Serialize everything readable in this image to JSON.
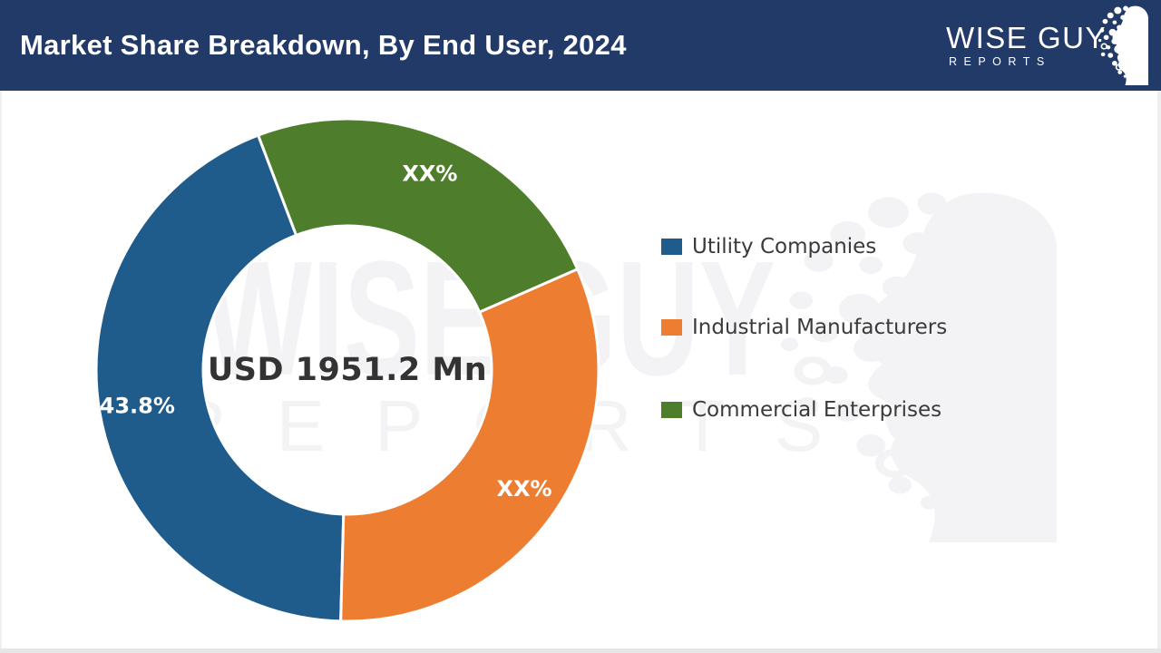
{
  "header": {
    "title": "Market Share Breakdown, By End User, 2024",
    "bg_color": "#223A68",
    "logo": {
      "name": "WISE GUY",
      "tagline": "REPORTS"
    }
  },
  "chart_data": {
    "type": "pie",
    "subtype": "donut",
    "title": "Market Share Breakdown, By End User, 2024",
    "center_label": "USD 1951.2 Mn",
    "categories": [
      "Utility Companies",
      "Industrial Manufacturers",
      "Commercial Enterprises"
    ],
    "values_pct": [
      43.8,
      32.0,
      24.2
    ],
    "slice_labels": [
      "43.8%",
      "XX%",
      "XX%"
    ],
    "colors": [
      "#1F5C8B",
      "#ED7D31",
      "#4E7D2B"
    ],
    "start_angle_deg": 110.8,
    "direction": "counterclockwise",
    "slice_label_color": "#FFFFFF",
    "legend_position": "right"
  },
  "legend": {
    "items": [
      {
        "label": "Utility Companies",
        "color": "#1F5C8B"
      },
      {
        "label": "Industrial Manufacturers",
        "color": "#ED7D31"
      },
      {
        "label": "Commercial Enterprises",
        "color": "#4E7D2B"
      }
    ]
  },
  "watermark": {
    "line1": "WISE GUY",
    "line2": "REPORTS"
  }
}
